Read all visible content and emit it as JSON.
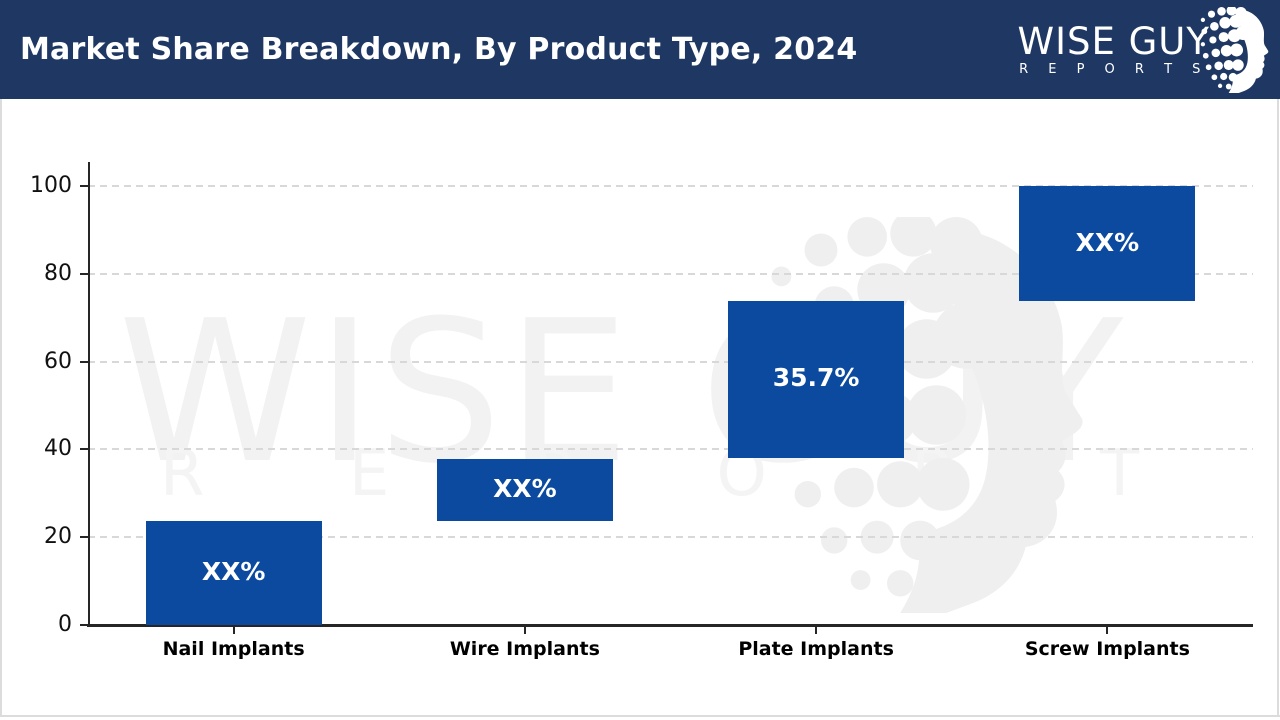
{
  "header": {
    "title": "Market Share Breakdown, By Product Type, 2024",
    "logo_line1": "WISE GUY",
    "logo_line2": "R E P O R T S"
  },
  "watermark": {
    "line1": "WISE GUY",
    "line2": "R E P O R T S"
  },
  "colors": {
    "header_bg": "#1f3863",
    "bar_fill": "#0b4a9f",
    "gridline": "#d8d8d8",
    "axis": "#262626",
    "bar_label_text": "#ffffff"
  },
  "chart_data": {
    "type": "bar",
    "subtype": "waterfall",
    "title": "Market Share Breakdown, By Product Type, 2024",
    "categories": [
      "Nail Implants",
      "Wire Implants",
      "Plate Implants",
      "Screw Implants"
    ],
    "segments": [
      {
        "category": "Nail Implants",
        "start": 0,
        "end": 23.6,
        "label": "XX%"
      },
      {
        "category": "Wire Implants",
        "start": 23.6,
        "end": 37.9,
        "label": "XX%"
      },
      {
        "category": "Plate Implants",
        "start": 38.1,
        "end": 73.8,
        "label": "35.7%"
      },
      {
        "category": "Screw Implants",
        "start": 73.8,
        "end": 100,
        "label": "XX%"
      }
    ],
    "yticks": [
      0,
      20,
      40,
      60,
      80,
      100
    ],
    "ylim": [
      0,
      105.5
    ],
    "xlabel": "",
    "ylabel": "",
    "legend": "none",
    "grid": "dashed-horizontal"
  }
}
